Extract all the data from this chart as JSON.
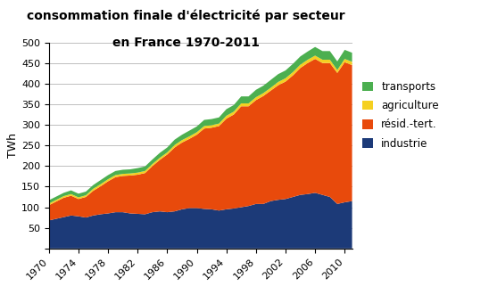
{
  "title_line1": "consommation finale d'électricité par secteur",
  "title_line2": "en France 1970-2011",
  "ylabel": "TWh",
  "years": [
    1970,
    1971,
    1972,
    1973,
    1974,
    1975,
    1976,
    1977,
    1978,
    1979,
    1980,
    1981,
    1982,
    1983,
    1984,
    1985,
    1986,
    1987,
    1988,
    1989,
    1990,
    1991,
    1992,
    1993,
    1994,
    1995,
    1996,
    1997,
    1998,
    1999,
    2000,
    2001,
    2002,
    2003,
    2004,
    2005,
    2006,
    2007,
    2008,
    2009,
    2010,
    2011
  ],
  "industrie": [
    68,
    72,
    76,
    80,
    78,
    75,
    80,
    83,
    85,
    88,
    88,
    85,
    84,
    83,
    88,
    90,
    88,
    90,
    95,
    98,
    98,
    96,
    95,
    92,
    95,
    97,
    100,
    103,
    108,
    108,
    115,
    118,
    120,
    125,
    130,
    132,
    135,
    130,
    125,
    108,
    112,
    115
  ],
  "resid_tert": [
    37,
    42,
    47,
    48,
    42,
    50,
    60,
    68,
    78,
    85,
    88,
    92,
    95,
    100,
    112,
    125,
    140,
    155,
    162,
    168,
    178,
    195,
    198,
    205,
    220,
    228,
    245,
    242,
    252,
    262,
    268,
    278,
    285,
    295,
    308,
    318,
    325,
    320,
    325,
    318,
    340,
    330
  ],
  "agriculture": [
    4,
    4,
    4,
    4,
    4,
    4,
    5,
    5,
    5,
    5,
    5,
    5,
    5,
    5,
    5,
    5,
    5,
    6,
    6,
    6,
    6,
    6,
    6,
    6,
    7,
    7,
    7,
    7,
    7,
    7,
    7,
    8,
    8,
    8,
    8,
    8,
    8,
    8,
    8,
    7,
    8,
    8
  ],
  "transports": [
    8,
    8,
    8,
    9,
    9,
    9,
    9,
    10,
    10,
    10,
    10,
    10,
    11,
    11,
    11,
    12,
    12,
    13,
    13,
    14,
    14,
    15,
    15,
    15,
    16,
    16,
    17,
    17,
    18,
    18,
    19,
    19,
    19,
    20,
    20,
    20,
    21,
    21,
    21,
    21,
    22,
    22
  ],
  "colors": {
    "industrie": "#1C3A78",
    "resid_tert": "#E84A0C",
    "agriculture": "#F5D020",
    "transports": "#4CAF50"
  },
  "ylim": [
    0,
    500
  ],
  "yticks": [
    0,
    50,
    100,
    150,
    200,
    250,
    300,
    350,
    400,
    450,
    500
  ],
  "xticks": [
    1970,
    1974,
    1978,
    1982,
    1986,
    1990,
    1994,
    1998,
    2002,
    2006,
    2010
  ],
  "background_color": "#ffffff"
}
